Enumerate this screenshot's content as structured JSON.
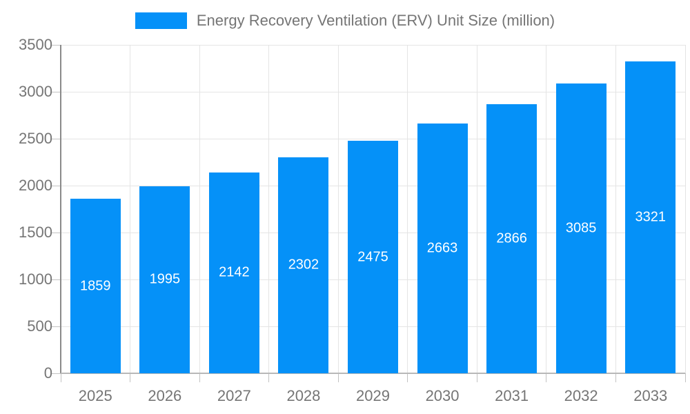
{
  "chart_data": {
    "type": "bar",
    "title": "Energy Recovery Ventilation (ERV) Unit Size (million)",
    "categories": [
      "2025",
      "2026",
      "2027",
      "2028",
      "2029",
      "2030",
      "2031",
      "2032",
      "2033"
    ],
    "values": [
      1859,
      1995,
      2142,
      2302,
      2475,
      2663,
      2866,
      3085,
      3321
    ],
    "xlabel": "",
    "ylabel": "",
    "ylim": [
      0,
      3500
    ],
    "ytick_step": 500,
    "ytick_labels": [
      "0",
      "500",
      "1000",
      "1500",
      "2000",
      "2500",
      "3000",
      "3500"
    ],
    "grid": "on",
    "legend_position": "top",
    "value_labels": "inside-center"
  },
  "colors": {
    "bar": "#0591f8",
    "grid": "#e4e4e4",
    "axis_y_line": "#8a8a8a",
    "axis_x_line": "#b8b8b8",
    "tick": "#c2c2c2",
    "axis_text": "#757575",
    "legend_text": "#757575",
    "value_text": "#ffffff",
    "background": "#ffffff"
  }
}
